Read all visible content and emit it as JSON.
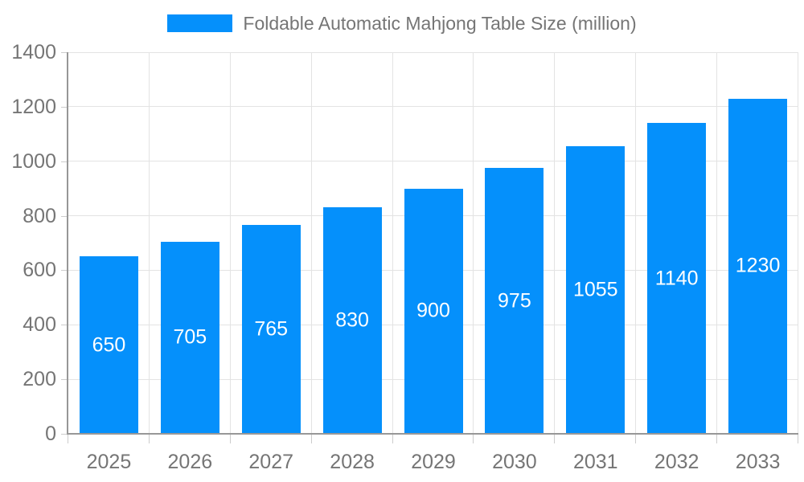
{
  "chart_data": {
    "type": "bar",
    "title": "",
    "legend_label": "Foldable Automatic Mahjong Table Size (million)",
    "categories": [
      "2025",
      "2026",
      "2027",
      "2028",
      "2029",
      "2030",
      "2031",
      "2032",
      "2033"
    ],
    "values": [
      650,
      705,
      765,
      830,
      900,
      975,
      1055,
      1140,
      1230
    ],
    "xlabel": "",
    "ylabel": "",
    "ylim": [
      0,
      1400
    ],
    "ytick_step": 200,
    "ytick_labels": [
      "0",
      "200",
      "400",
      "600",
      "800",
      "1000",
      "1200",
      "1400"
    ],
    "grid": "on",
    "legend_position": "top-center",
    "bar_value_labels": [
      "650",
      "705",
      "765",
      "830",
      "900",
      "975",
      "1055",
      "1140",
      "1230"
    ],
    "colors": {
      "bar": "#0590fb",
      "bar_label_text": "#ffffff",
      "axis_text": "#757575",
      "legend_text": "#757575",
      "gridline": "#e3e3e3",
      "axis_line": "#979797",
      "tick": "#cccccc",
      "background": "#ffffff"
    }
  }
}
